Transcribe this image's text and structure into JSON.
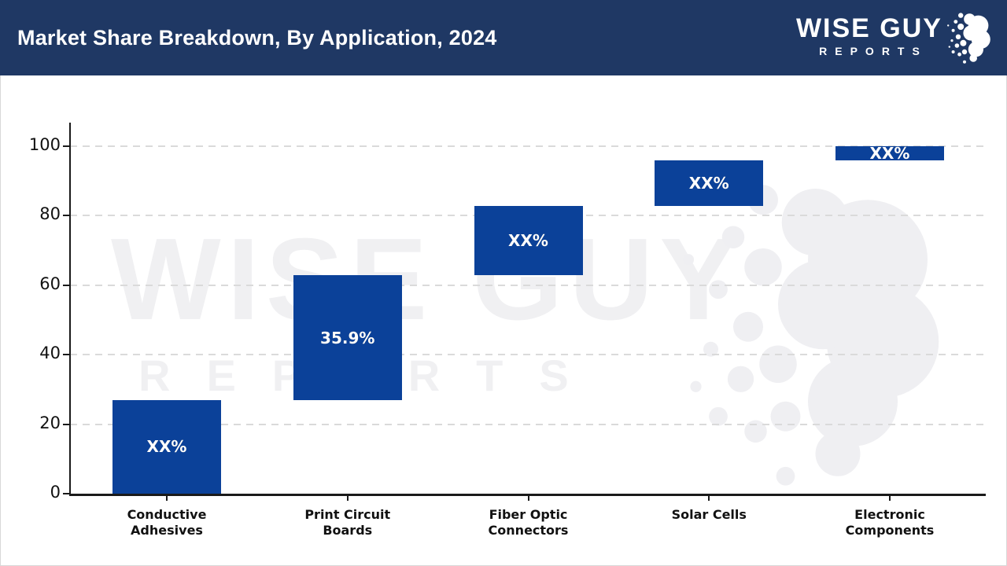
{
  "header": {
    "title": "Market Share Breakdown, By Application, 2024",
    "brand_line1": "WISE GUY",
    "brand_line2": "REPORTS",
    "bg_color": "#1f3864"
  },
  "watermark": {
    "line1": "WISE GUY",
    "line2": "REPORTS"
  },
  "chart_data": {
    "type": "bar",
    "subtype": "waterfall",
    "title": "Market Share Breakdown, By Application, 2024",
    "xlabel": "",
    "ylabel": "",
    "ylim": [
      0,
      100
    ],
    "yticks": [
      0,
      20,
      40,
      60,
      80,
      100
    ],
    "grid": "horizontal-dashed",
    "legend": "none",
    "bar_color": "#0b4199",
    "value_label_color": "#ffffff",
    "categories": [
      "Conductive Adhesives",
      "Print Circuit Boards",
      "Fiber Optic Connectors",
      "Solar Cells",
      "Electronic Components"
    ],
    "segments": [
      {
        "category": "Conductive Adhesives",
        "label_lines": [
          "Conductive",
          "Adhesives"
        ],
        "start": 0,
        "end": 26.9,
        "value_label": "XX%"
      },
      {
        "category": "Print Circuit Boards",
        "label_lines": [
          "Print Circuit",
          "Boards"
        ],
        "start": 26.9,
        "end": 62.8,
        "value_label": "35.9%"
      },
      {
        "category": "Fiber Optic Connectors",
        "label_lines": [
          "Fiber Optic",
          "Connectors"
        ],
        "start": 62.8,
        "end": 82.8,
        "value_label": "XX%"
      },
      {
        "category": "Solar Cells",
        "label_lines": [
          "Solar Cells"
        ],
        "start": 82.8,
        "end": 95.9,
        "value_label": "XX%"
      },
      {
        "category": "Electronic Components",
        "label_lines": [
          "Electronic",
          "Components"
        ],
        "start": 95.9,
        "end": 100,
        "value_label": "XX%"
      }
    ]
  }
}
